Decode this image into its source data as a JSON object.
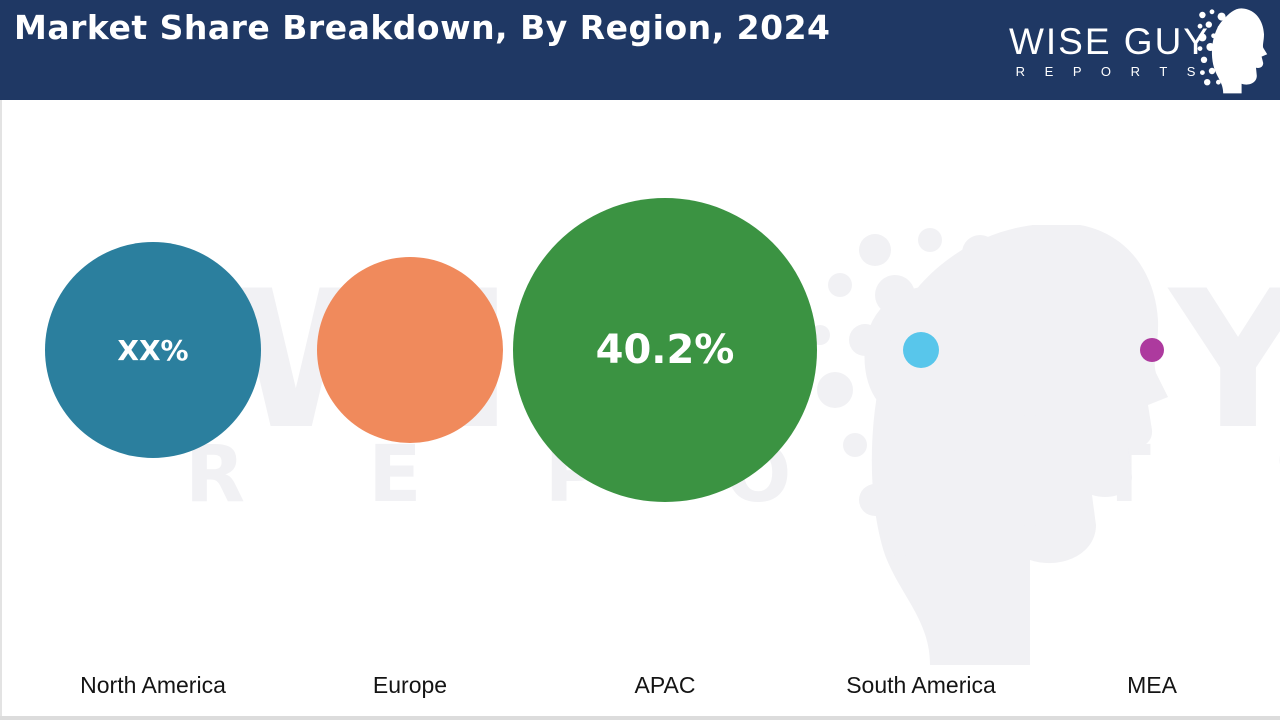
{
  "header": {
    "title": "Market Share Breakdown, By Region, 2024",
    "bg_color": "#1f3864",
    "logo": {
      "name": "Wise Guy Reports",
      "line1": "WISE GUY",
      "line2": "R E P O R T S"
    }
  },
  "watermark": {
    "line1": "WISE GUY",
    "line2": "R E P O R T S"
  },
  "chart_data": {
    "type": "bubble",
    "title": "Market Share Breakdown, By Region, 2024",
    "categories": [
      "North America",
      "Europe",
      "APAC",
      "South America",
      "MEA"
    ],
    "legend_position": "bottom",
    "bubbles": [
      {
        "label": "North America",
        "value_label": "XX%",
        "color": "#2b7f9e",
        "radius_px": 108
      },
      {
        "label": "Europe",
        "value_label": "",
        "color": "#f08a5c",
        "radius_px": 93
      },
      {
        "label": "APAC",
        "value_label": "40.2%",
        "color": "#3b9342",
        "radius_px": 152
      },
      {
        "label": "South America",
        "value_label": "",
        "color": "#58c6eb",
        "radius_px": 18
      },
      {
        "label": "MEA",
        "value_label": "",
        "color": "#ad3a9e",
        "radius_px": 12
      }
    ]
  }
}
